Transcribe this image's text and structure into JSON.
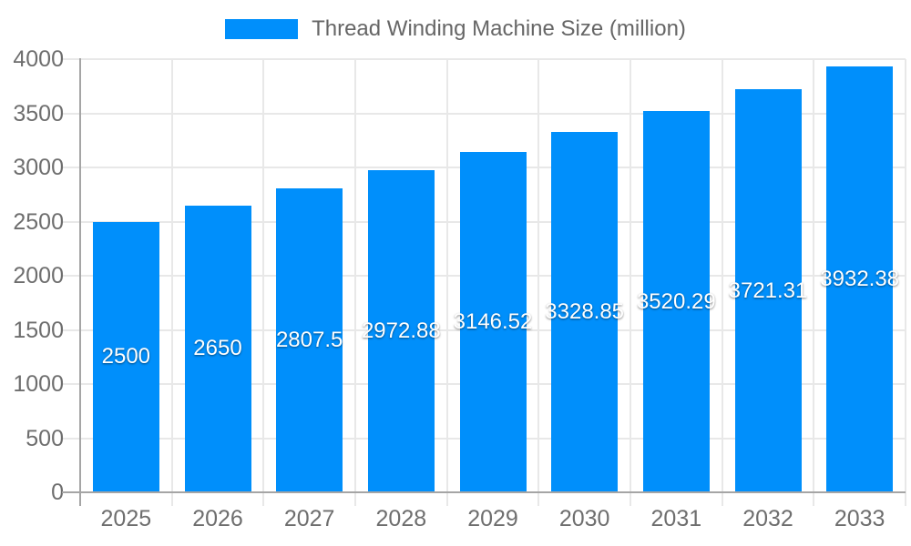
{
  "chart_data": {
    "type": "bar",
    "title": "",
    "legend": "Thread Winding Machine Size (million)",
    "legend_position": "top",
    "categories": [
      "2025",
      "2026",
      "2027",
      "2028",
      "2029",
      "2030",
      "2031",
      "2032",
      "2033"
    ],
    "series": [
      {
        "name": "Thread Winding Machine Size (million)",
        "values": [
          2500,
          2650,
          2807.5,
          2972.88,
          3146.52,
          3328.85,
          3520.29,
          3721.31,
          3932.38
        ]
      }
    ],
    "value_labels": [
      "2500",
      "2650",
      "2807.5",
      "2972.88",
      "3146.52",
      "3328.85",
      "3520.29",
      "3721.31",
      "3932.38"
    ],
    "xlabel": "",
    "ylabel": "",
    "ylim": [
      0,
      4000
    ],
    "ytick_step": 500,
    "ytick_labels": [
      "0",
      "500",
      "1000",
      "1500",
      "2000",
      "2500",
      "3000",
      "3500",
      "4000"
    ],
    "grid": true,
    "colors": {
      "bar": "#008FFB",
      "axis_label": "#6e6e6e",
      "legend_label": "#666666",
      "grid_line": "#e8e8e8",
      "axis_line": "#a5a5a5",
      "data_label": "#ffffff",
      "background": "#ffffff"
    }
  }
}
